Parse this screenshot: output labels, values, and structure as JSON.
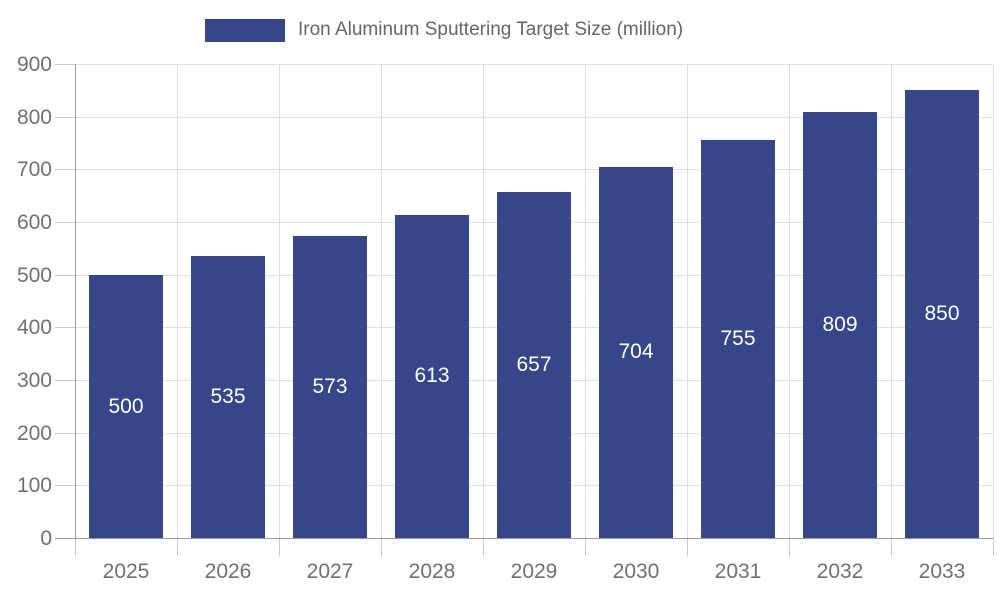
{
  "legend": {
    "label": "Iron Aluminum Sputtering Target Size (million)"
  },
  "chart_data": {
    "type": "bar",
    "title": "Iron Aluminum Sputtering Target Size (million)",
    "categories": [
      "2025",
      "2026",
      "2027",
      "2028",
      "2029",
      "2030",
      "2031",
      "2032",
      "2033"
    ],
    "values": [
      500,
      535,
      573,
      613,
      657,
      704,
      755,
      809,
      850
    ],
    "xlabel": "",
    "ylabel": "",
    "ylim": [
      0,
      900
    ],
    "yticks": [
      0,
      100,
      200,
      300,
      400,
      500,
      600,
      700,
      800,
      900
    ],
    "grid": true,
    "legend_position": "top",
    "value_labels": "centered-white-inside-bars",
    "colors": {
      "bar": "#35478a",
      "grid": "#e0e0e0",
      "axis": "#9a9a9a",
      "tick": "#c9c9c9",
      "axis_label": "#707070",
      "value_label": "#ffffff",
      "legend_text": "#666666"
    }
  }
}
